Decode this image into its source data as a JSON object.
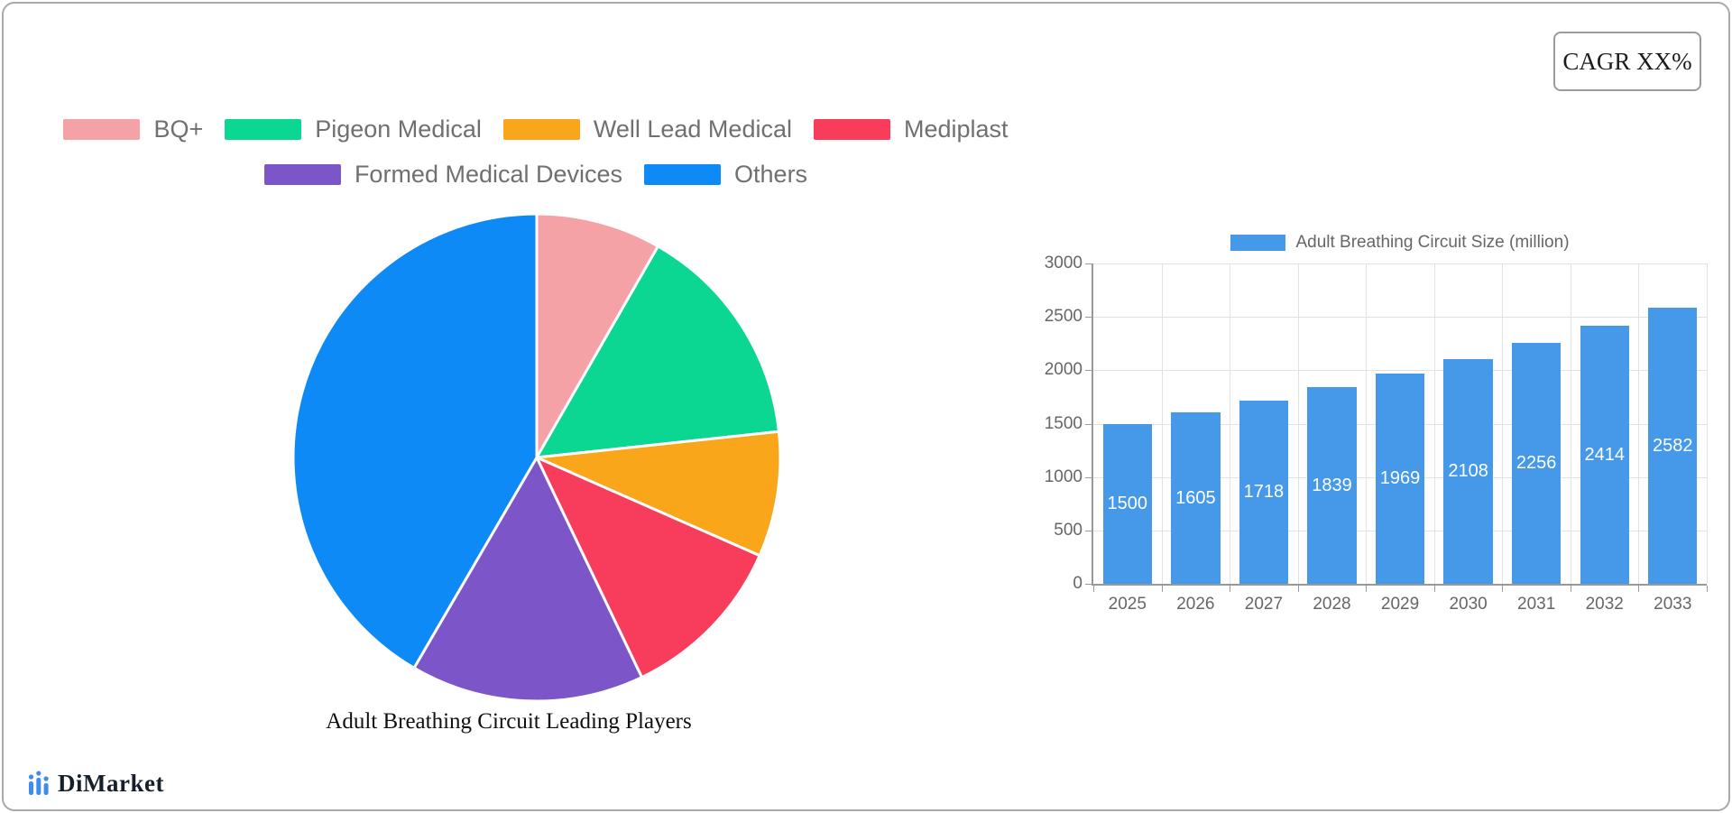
{
  "header": {
    "cagr_label": "CAGR XX%"
  },
  "brand": {
    "name": "DiMarket",
    "icon": "bar-chart-logo-icon",
    "accent_color": "#3f8cef",
    "text_color": "#16202b"
  },
  "chart_data": [
    {
      "type": "pie",
      "title": "Adult Breathing Circuit Leading Players",
      "labels": [
        "BQ+",
        "Pigeon Medical",
        "Well Lead Medical",
        "Mediplast",
        "Formed Medical Devices",
        "Others"
      ],
      "values": [
        8.3,
        15.0,
        8.3,
        11.3,
        15.5,
        41.6
      ],
      "unit": "percent-share-estimate",
      "colors": [
        "#f5a2a7",
        "#0cd792",
        "#f9a61a",
        "#f83d5c",
        "#7c55c8",
        "#0d8af5"
      ],
      "slice_border_color": "#ffffff",
      "start_angle": "top",
      "direction": "clockwise",
      "legend_position": "top",
      "legend_rows": [
        [
          0,
          1,
          2,
          3
        ],
        [
          4,
          5
        ]
      ]
    },
    {
      "type": "bar",
      "categories": [
        "2025",
        "2026",
        "2027",
        "2028",
        "2029",
        "2030",
        "2031",
        "2032",
        "2033"
      ],
      "series": [
        {
          "name": "Adult Breathing Circuit Size (million)",
          "values": [
            1500,
            1605,
            1718,
            1839,
            1969,
            2108,
            2256,
            2414,
            2582
          ]
        }
      ],
      "ylim": [
        0,
        3000
      ],
      "ytick_step": 500,
      "yticks": [
        0,
        500,
        1000,
        1500,
        2000,
        2500,
        3000
      ],
      "bar_color": "#4599e8",
      "value_label_color": "#ffffff",
      "grid": true,
      "legend_position": "top"
    }
  ]
}
